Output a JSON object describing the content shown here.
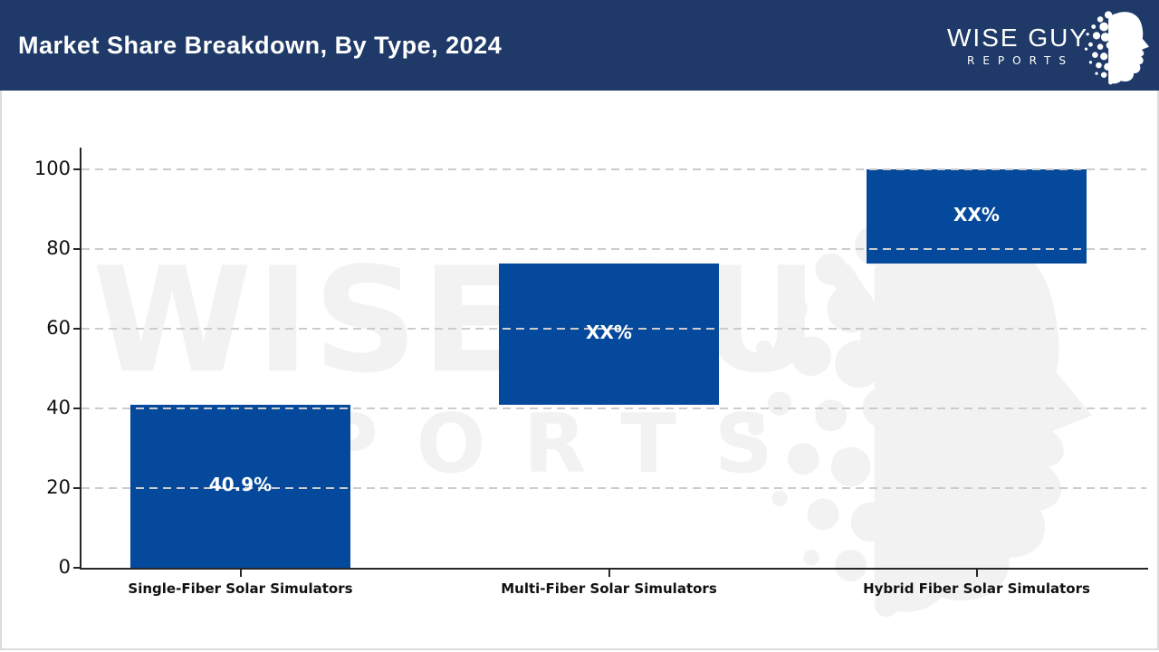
{
  "header": {
    "title": "Market Share Breakdown, By Type, 2024",
    "logo": {
      "wordmark": "WISE GUY",
      "subtext": "REPORTS"
    }
  },
  "watermark": {
    "line1": "WISE GUY",
    "line2": "REPORTS"
  },
  "chart_data": {
    "type": "bar",
    "subtype": "floating-waterfall",
    "title": "Market Share Breakdown, By Type, 2024",
    "categories": [
      "Single-Fiber Solar Simulators",
      "Multi-Fiber Solar Simulators",
      "Hybrid Fiber Solar Simulators"
    ],
    "segments": [
      {
        "category": "Single-Fiber Solar Simulators",
        "start": 0,
        "end": 40.9,
        "label": "40.9%"
      },
      {
        "category": "Multi-Fiber Solar Simulators",
        "start": 40.9,
        "end": 76.4,
        "label": "XX%"
      },
      {
        "category": "Hybrid Fiber Solar Simulators",
        "start": 76.4,
        "end": 100,
        "label": "XX%"
      }
    ],
    "ylim": [
      0,
      100
    ],
    "yticks": [
      0,
      20,
      40,
      60,
      80,
      100
    ],
    "grid": "horizontal-dashed",
    "legend": "none",
    "xlabel": "",
    "ylabel": "",
    "bar_color": "#05499C"
  },
  "colors": {
    "header_bg": "#1F3A68",
    "bar": "#05499C",
    "grid": "#cccccc",
    "axis": "#262626",
    "watermark": "#f2f2f2"
  }
}
